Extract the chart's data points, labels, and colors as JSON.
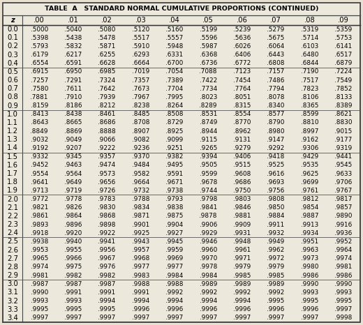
{
  "title": "TABLE  A   STANDARD NORMAL CUMULATIVE PROPORTIONS (CONTINUED)",
  "col_headers": [
    "z",
    ".00",
    ".01",
    ".02",
    ".03",
    ".04",
    ".05",
    ".06",
    ".07",
    ".08",
    ".09"
  ],
  "rows": [
    [
      "0.0",
      "5000",
      "5040",
      "5080",
      "5120",
      "5160",
      "5199",
      "5239",
      "5279",
      "5319",
      "5359"
    ],
    [
      "0.1",
      "5398",
      "5438",
      "5478",
      "5517",
      "5557",
      "5596",
      "5636",
      "5675",
      "5714",
      "5753"
    ],
    [
      "0.2",
      "5793",
      "5832",
      "5871",
      "5910",
      "5948",
      "5987",
      "6026",
      "6064",
      "6103",
      "6141"
    ],
    [
      "0.3",
      "6179",
      "6217",
      "6255",
      "6293",
      "6331",
      "6368",
      "6406",
      "6443",
      "6480",
      "6517"
    ],
    [
      "0.4",
      "6554",
      "6591",
      "6628",
      "6664",
      "6700",
      "6736",
      "6772",
      "6808",
      "6844",
      "6879"
    ],
    [
      "0.5",
      "6915",
      "6950",
      "6985",
      "7019",
      "7054",
      "7088",
      "7123",
      "7157",
      "7190",
      "7224"
    ],
    [
      "0.6",
      "7257",
      "7291",
      "7324",
      "7357",
      "7389",
      "7422",
      "7454",
      "7486",
      "7517",
      "7549"
    ],
    [
      "0.7",
      "7580",
      "7611",
      "7642",
      "7673",
      "7704",
      "7734",
      "7764",
      "7794",
      "7823",
      "7852"
    ],
    [
      "0.8",
      "7881",
      "7910",
      "7939",
      "7967",
      "7995",
      "8023",
      "8051",
      "8078",
      "8106",
      "8133"
    ],
    [
      "0.9",
      "8159",
      "8186",
      "8212",
      "8238",
      "8264",
      "8289",
      "8315",
      "8340",
      "8365",
      "8389"
    ],
    [
      "1.0",
      "8413",
      "8438",
      "8461",
      "8485",
      "8508",
      "8531",
      "8554",
      "8577",
      "8599",
      "8621"
    ],
    [
      "1.1",
      "8643",
      "8665",
      "8686",
      "8708",
      "8729",
      "8749",
      "8770",
      "8790",
      "8810",
      "8830"
    ],
    [
      "1.2",
      "8849",
      "8869",
      "8888",
      "8907",
      "8925",
      "8944",
      "8962",
      "8980",
      "8997",
      "9015"
    ],
    [
      "1.3",
      "9032",
      "9049",
      "9066",
      "9082",
      "9099",
      "9115",
      "9131",
      "9147",
      "9162",
      "9177"
    ],
    [
      "1.4",
      "9192",
      "9207",
      "9222",
      "9236",
      "9251",
      "9265",
      "9279",
      "9292",
      "9306",
      "9319"
    ],
    [
      "1.5",
      "9332",
      "9345",
      "9357",
      "9370",
      "9382",
      "9394",
      "9406",
      "9418",
      "9429",
      "9441"
    ],
    [
      "1.6",
      "9452",
      "9463",
      "9474",
      "9484",
      "9495",
      "9505",
      "9515",
      "9525",
      "9535",
      "9545"
    ],
    [
      "1.7",
      "9554",
      "9564",
      "9573",
      "9582",
      "9591",
      "9599",
      "9608",
      "9616",
      "9625",
      "9633"
    ],
    [
      "1.8",
      "9641",
      "9649",
      "9656",
      "9664",
      "9671",
      "9678",
      "9686",
      "9693",
      "9699",
      "9706"
    ],
    [
      "1.9",
      "9713",
      "9719",
      "9726",
      "9732",
      "9738",
      "9744",
      "9750",
      "9756",
      "9761",
      "9767"
    ],
    [
      "2.0",
      "9772",
      "9778",
      "9783",
      "9788",
      "9793",
      "9798",
      "9803",
      "9808",
      "9812",
      "9817"
    ],
    [
      "2.1",
      "9821",
      "9826",
      "9830",
      "9834",
      "9838",
      "9841",
      "9846",
      "9850",
      "9854",
      "9857"
    ],
    [
      "2.2",
      "9861",
      "9864",
      "9868",
      "9871",
      "9875",
      "9878",
      "9881",
      "9884",
      "9887",
      "9890"
    ],
    [
      "2.3",
      "9893",
      "9896",
      "9898",
      "9901",
      "9904",
      "9906",
      "9909",
      "9911",
      "9913",
      "9916"
    ],
    [
      "2.4",
      "9918",
      "9920",
      "9922",
      "9925",
      "9927",
      "9929",
      "9931",
      "9932",
      "9934",
      "9936"
    ],
    [
      "2.5",
      "9938",
      "9940",
      "9941",
      "9943",
      "9945",
      "9946",
      "9948",
      "9949",
      "9951",
      "9952"
    ],
    [
      "2.6",
      "9953",
      "9955",
      "9956",
      "9957",
      "9959",
      "9960",
      "9961",
      "9962",
      "9963",
      "9964"
    ],
    [
      "2.7",
      "9965",
      "9966",
      "9967",
      "9968",
      "9969",
      "9970",
      "9971",
      "9972",
      "9973",
      "9974"
    ],
    [
      "2.8",
      "9974",
      "9975",
      "9976",
      "9977",
      "9977",
      "9978",
      "9979",
      "9979",
      "9980",
      "9981"
    ],
    [
      "2.9",
      "9981",
      "9982",
      "9982",
      "9983",
      "9984",
      "9984",
      "9985",
      "9985",
      "9986",
      "9986"
    ],
    [
      "3.0",
      "9987",
      "9987",
      "9987",
      "9988",
      "9988",
      "9989",
      "9989",
      "9989",
      "9990",
      "9990"
    ],
    [
      "3.1",
      "9990",
      "9991",
      "9991",
      "9991",
      "9992",
      "9992",
      "9992",
      "9992",
      "9993",
      "9993"
    ],
    [
      "3.2",
      "9993",
      "9993",
      "9994",
      "9994",
      "9994",
      "9994",
      "9994",
      "9995",
      "9995",
      "9995"
    ],
    [
      "3.3",
      "9995",
      "9995",
      "9995",
      "9996",
      "9996",
      "9996",
      "9996",
      "9996",
      "9996",
      "9997"
    ],
    [
      "3.4",
      "9997",
      "9997",
      "9997",
      "9997",
      "9997",
      "9997",
      "9997",
      "9997",
      "9997",
      "9998"
    ]
  ],
  "group_separators_after": [
    4,
    9,
    14,
    19,
    24,
    29
  ],
  "bg_color": "#e8e0d0",
  "table_bg": "#ede8dc",
  "text_color": "#000000",
  "title_fontsize": 6.8,
  "header_fontsize": 7.2,
  "cell_fontsize": 6.4
}
